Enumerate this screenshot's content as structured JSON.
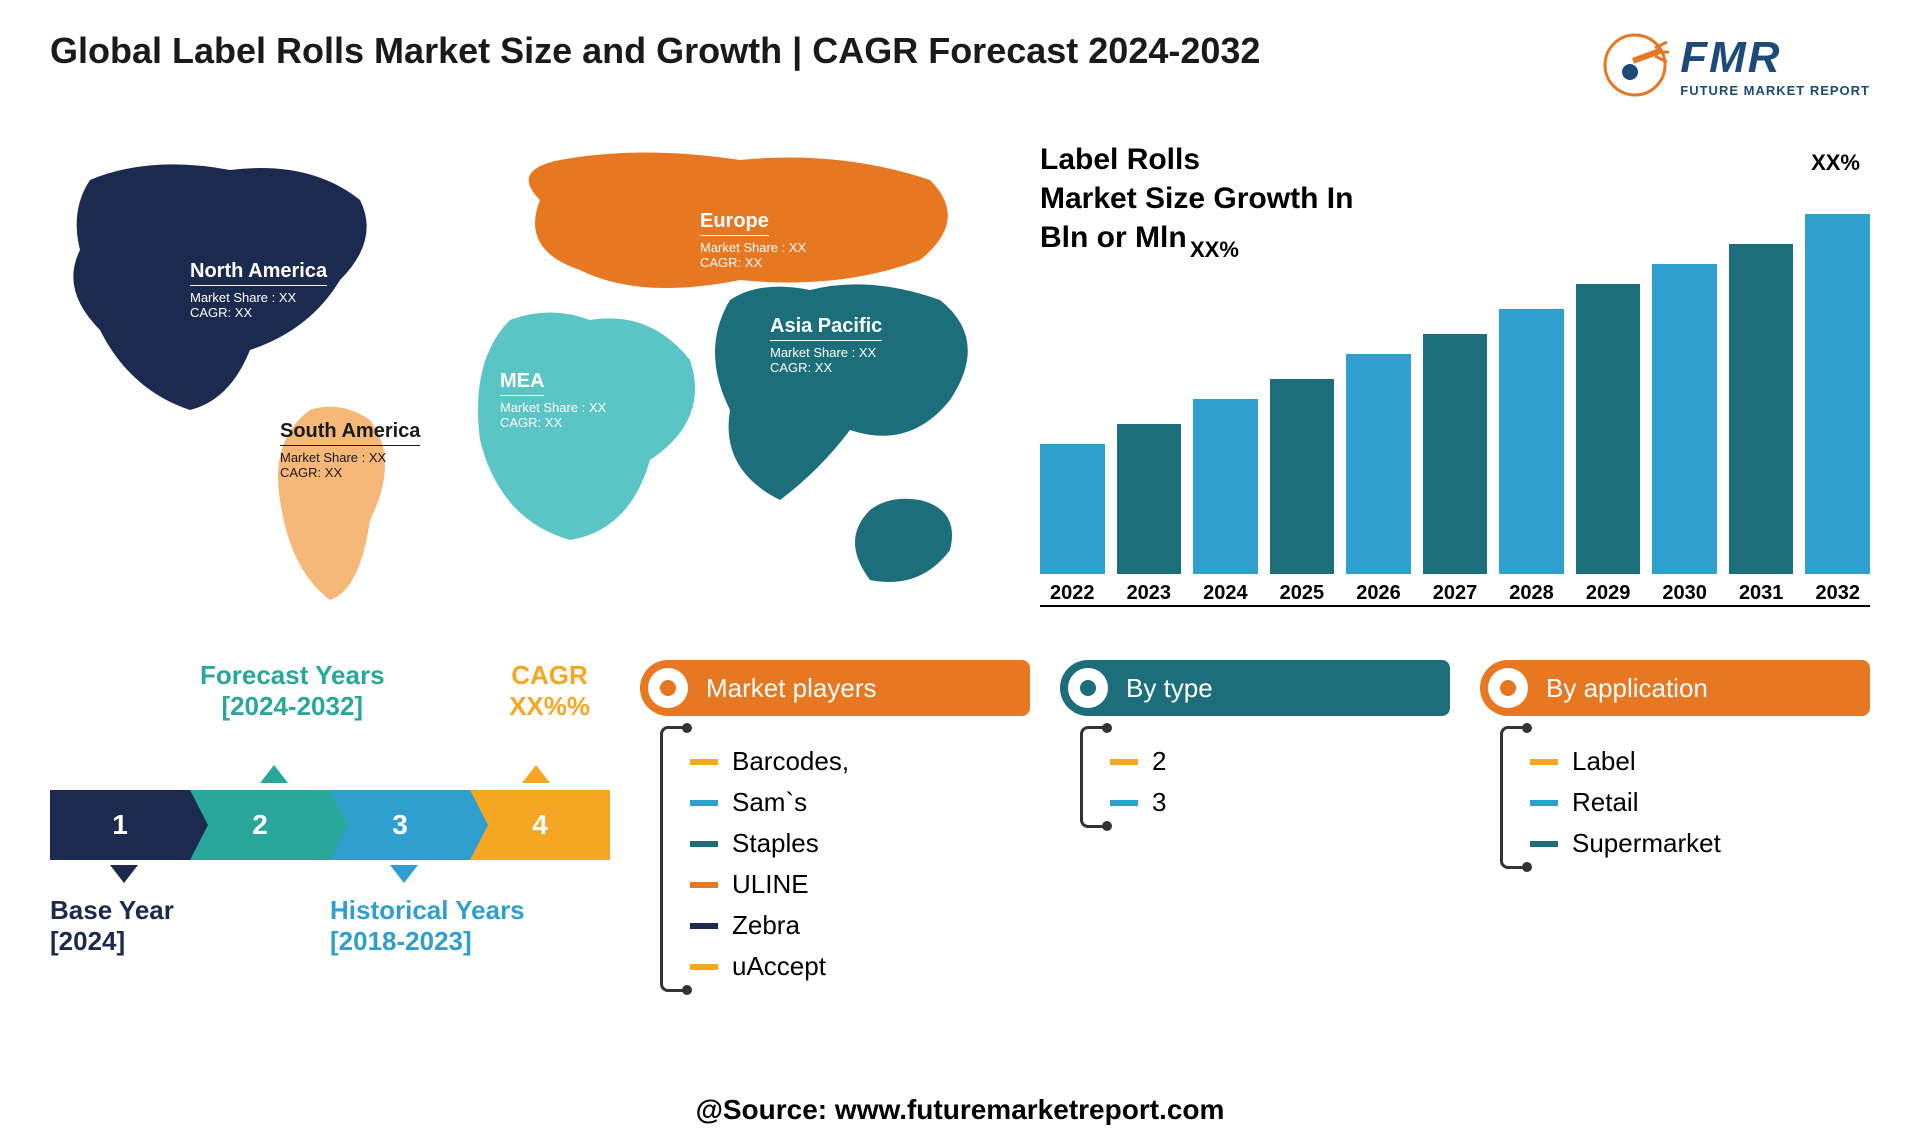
{
  "title": "Global Label Rolls Market Size and Growth | CAGR Forecast 2024-2032",
  "logo": {
    "fmr": "FMR",
    "sub": "FUTURE MARKET REPORT"
  },
  "colors": {
    "na": "#1b2a4e",
    "sa": "#f5b878",
    "eu": "#e87722",
    "mea": "#5bc4c4",
    "ap": "#1b6e7a",
    "bar_light": "#2f9fd0",
    "bar_dark": "#1b6e7a",
    "tl1": "#1b2a4e",
    "tl2": "#2aa79b",
    "tl3": "#2f9fd0",
    "tl4": "#f5a623",
    "cat_orange": "#e87722",
    "cat_teal": "#1b6e7a",
    "text_dark": "#1a1a1a"
  },
  "regions": {
    "na": {
      "name": "North America",
      "share": "Market Share : XX",
      "cagr": "CAGR: XX"
    },
    "sa": {
      "name": "South America",
      "share": "Market Share : XX",
      "cagr": "CAGR: XX"
    },
    "eu": {
      "name": "Europe",
      "share": "Market Share : XX",
      "cagr": "CAGR: XX"
    },
    "mea": {
      "name": "MEA",
      "share": "Market Share : XX",
      "cagr": "CAGR: XX"
    },
    "ap": {
      "name": "Asia Pacific",
      "share": "Market Share : XX",
      "cagr": "CAGR: XX"
    }
  },
  "chart": {
    "title": "Label Rolls\nMarket Size Growth In\nBln or Mln",
    "annot1": "XX%",
    "annot2": "XX%",
    "years": [
      "2022",
      "2023",
      "2024",
      "2025",
      "2026",
      "2027",
      "2028",
      "2029",
      "2030",
      "2031",
      "2032"
    ],
    "heights": [
      130,
      150,
      175,
      195,
      220,
      240,
      265,
      290,
      310,
      330,
      360
    ],
    "bar_colors": [
      "#2f9fd0",
      "#1b6e7a",
      "#2f9fd0",
      "#1b6e7a",
      "#2f9fd0",
      "#1b6e7a",
      "#2f9fd0",
      "#1b6e7a",
      "#2f9fd0",
      "#1b6e7a",
      "#2f9fd0"
    ]
  },
  "timeline": {
    "forecast_label": "Forecast Years",
    "forecast_range": "[2024-2032]",
    "cagr_label": "CAGR",
    "cagr_value": "XX%%",
    "base_label": "Base Year",
    "base_range": "[2024]",
    "hist_label": "Historical Years",
    "hist_range": "[2018-2023]",
    "segs": [
      "1",
      "2",
      "3",
      "4"
    ]
  },
  "categories": [
    {
      "title": "Market players",
      "bg": "#e87722",
      "items": [
        {
          "label": "Barcodes,",
          "marker": "#f5a623"
        },
        {
          "label": "Sam`s",
          "marker": "#2f9fd0"
        },
        {
          "label": "Staples",
          "marker": "#1b6e7a"
        },
        {
          "label": "ULINE",
          "marker": "#e87722"
        },
        {
          "label": "Zebra",
          "marker": "#1b2a4e"
        },
        {
          "label": "uAccept",
          "marker": "#f5a623"
        }
      ]
    },
    {
      "title": "By type",
      "bg": "#1b6e7a",
      "items": [
        {
          "label": "2",
          "marker": "#f5a623"
        },
        {
          "label": "3",
          "marker": "#2f9fd0"
        }
      ]
    },
    {
      "title": "By application",
      "bg": "#e87722",
      "items": [
        {
          "label": "Label",
          "marker": "#f5a623"
        },
        {
          "label": "Retail",
          "marker": "#2f9fd0"
        },
        {
          "label": "Supermarket",
          "marker": "#1b6e7a"
        }
      ]
    }
  ],
  "source": "@Source: www.futuremarketreport.com"
}
